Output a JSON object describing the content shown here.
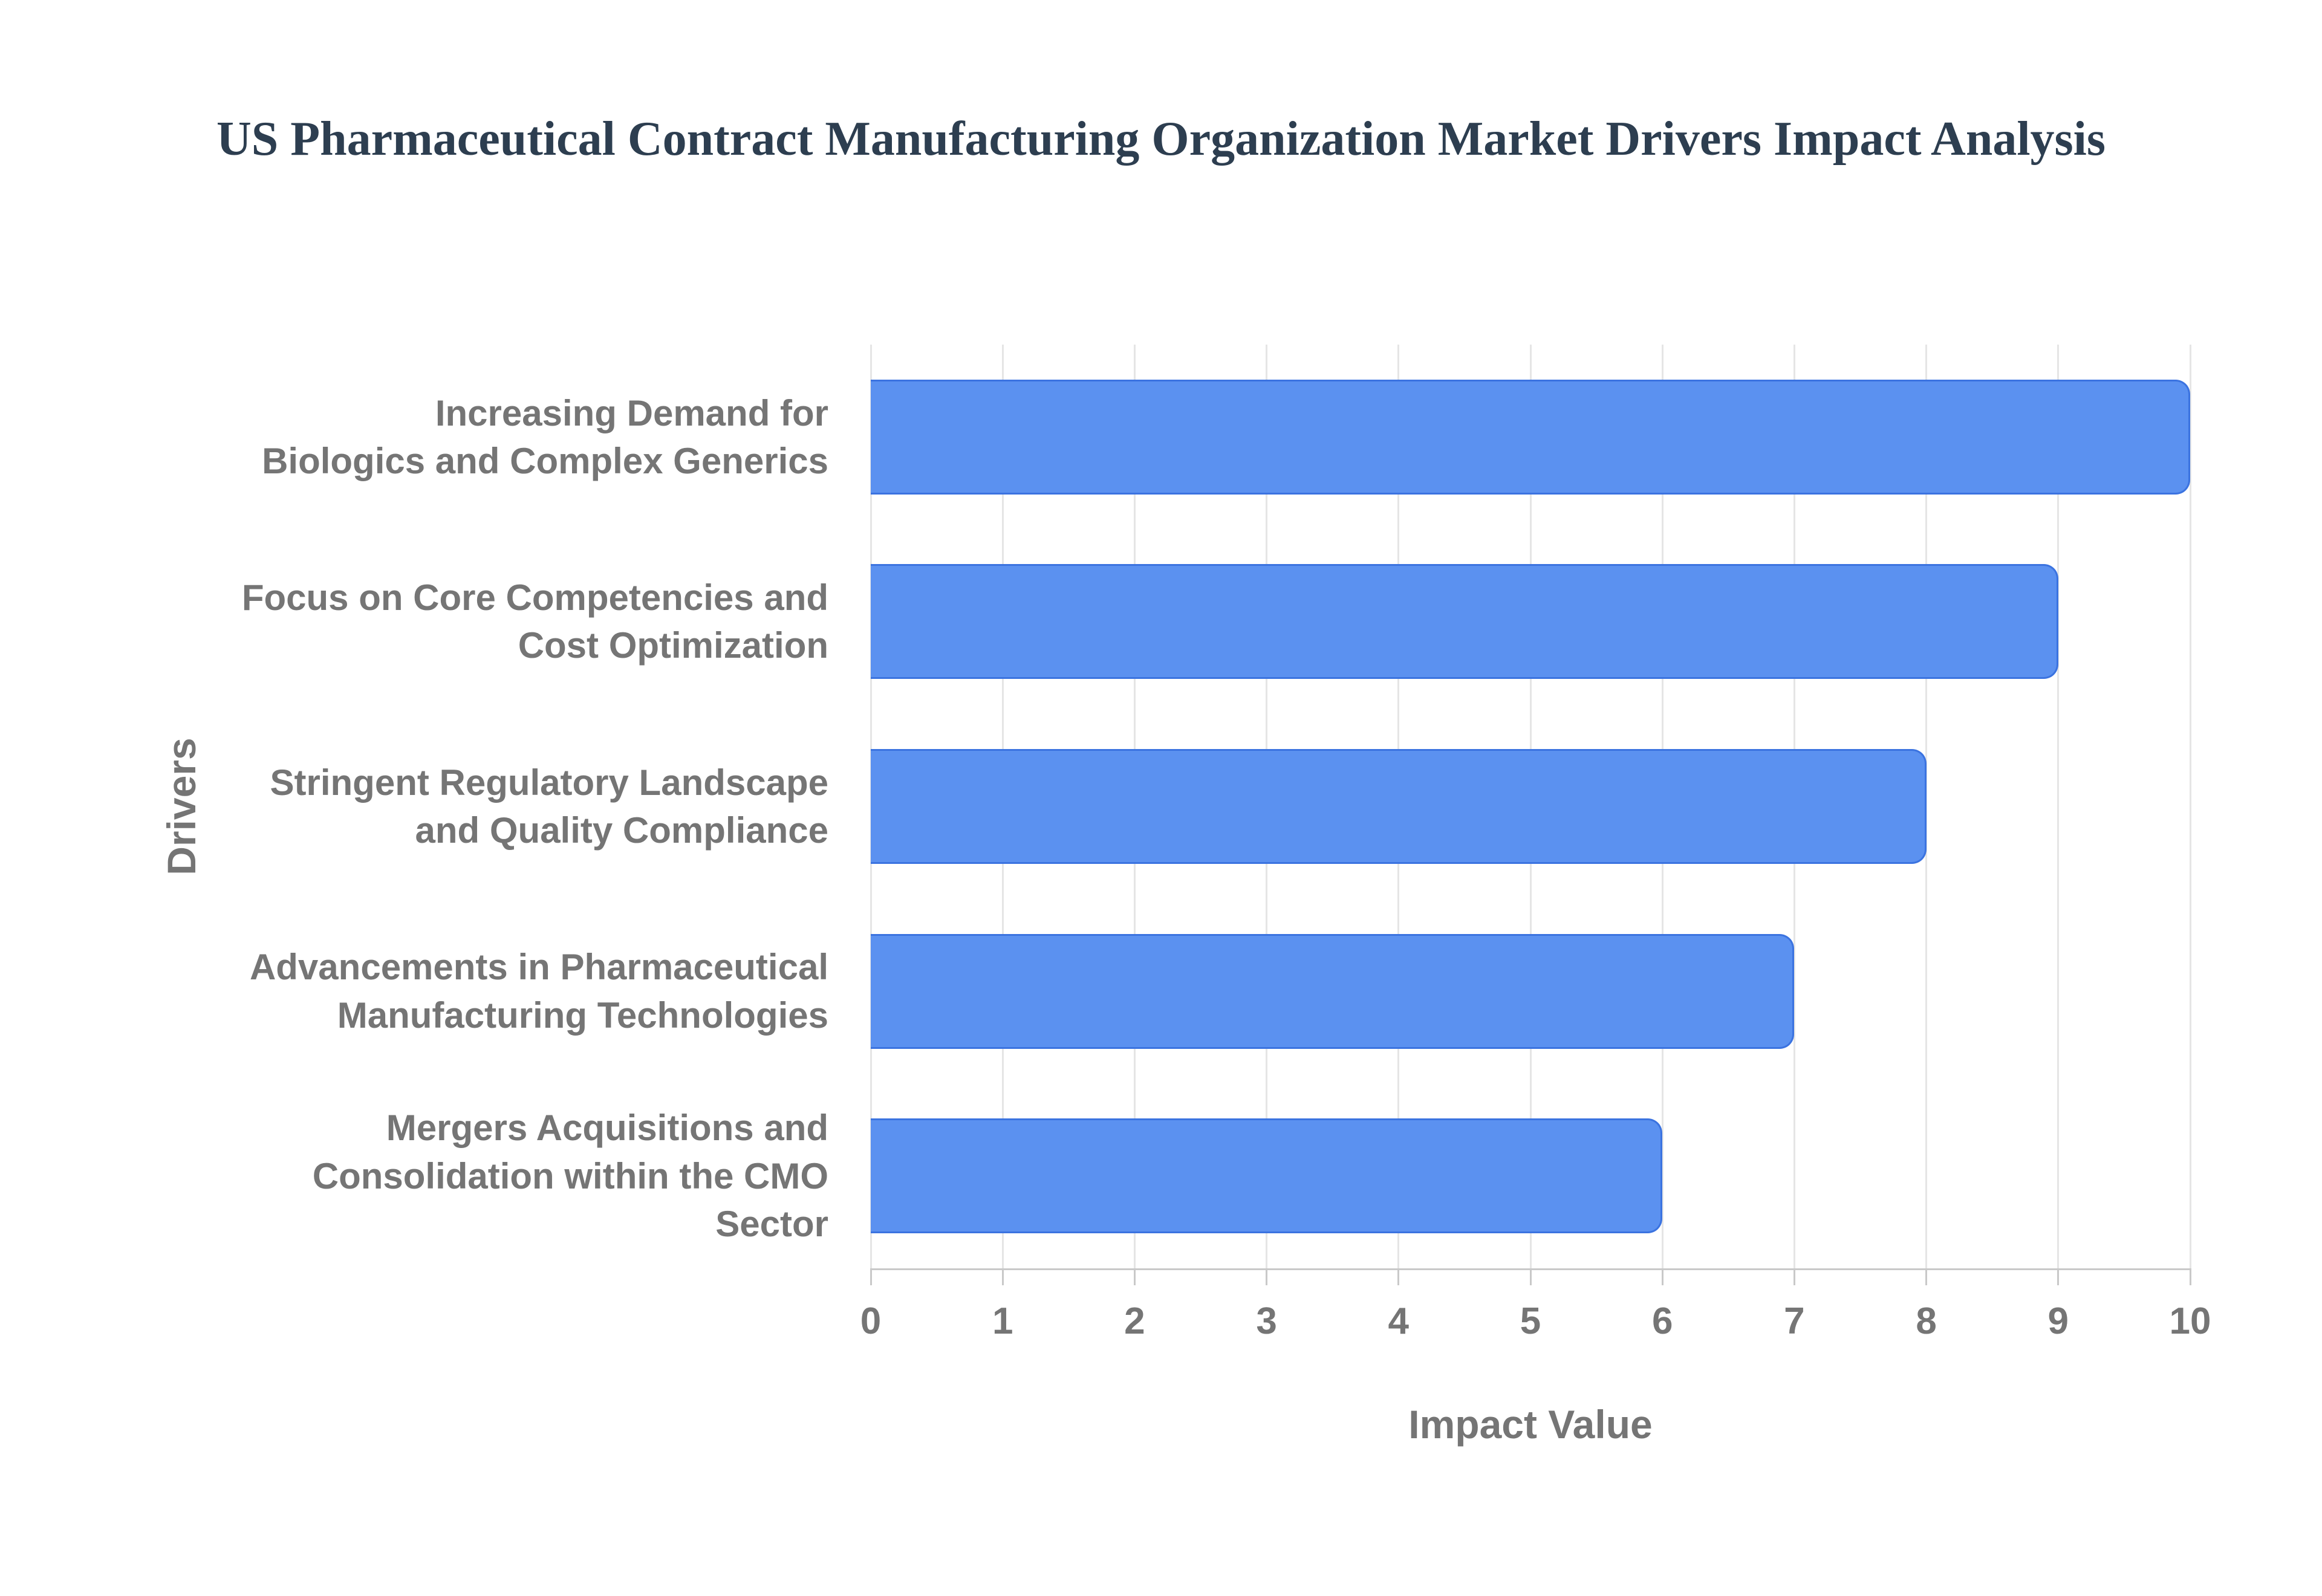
{
  "chart_data": {
    "type": "bar",
    "orientation": "horizontal",
    "title": "US Pharmaceutical Contract Manufacturing Organization Market Drivers Impact Analysis",
    "categories": [
      [
        "Increasing Demand for",
        "Biologics and Complex Generics"
      ],
      [
        "Focus on Core Competencies and",
        "Cost Optimization"
      ],
      [
        "Stringent Regulatory Landscape",
        "and Quality Compliance"
      ],
      [
        "Advancements in Pharmaceutical",
        "Manufacturing Technologies"
      ],
      [
        "Mergers Acquisitions and",
        "Consolidation within the CMO",
        "Sector"
      ]
    ],
    "values": [
      10,
      9,
      8,
      7,
      6
    ],
    "xlabel": "Impact Value",
    "ylabel": "Drivers",
    "xlim": [
      0,
      10
    ],
    "xticks": [
      "0",
      "1",
      "2",
      "3",
      "4",
      "5",
      "6",
      "7",
      "8",
      "9",
      "10"
    ],
    "grid": true,
    "legend": false,
    "colors": {
      "bar_fill": "#5b91f0",
      "bar_border": "#3b73e0",
      "gridline": "#e5e5e5",
      "axis_line": "#c9c9c9",
      "title_text": "#2d3e50",
      "label_text": "#757575"
    }
  }
}
